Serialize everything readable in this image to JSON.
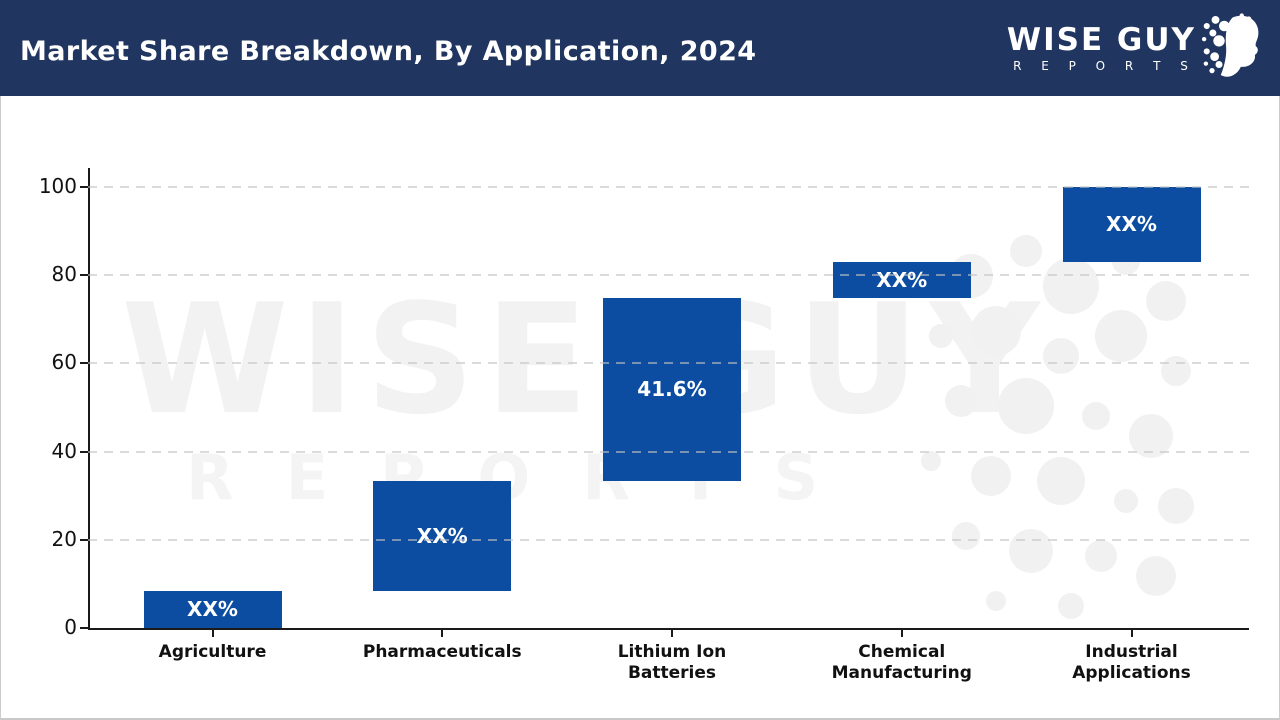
{
  "header": {
    "title": "Market Share Breakdown, By Application, 2024",
    "logo": {
      "line1": "WISE GUY",
      "line2": "R E P O R T S"
    }
  },
  "watermark": {
    "line1": "WISE GUY",
    "line2": "REPORTS"
  },
  "colors": {
    "header_bg": "#20355f",
    "bar_fill": "#0c4da2",
    "bar_label_text": "#ffffff",
    "axis": "#1a1a1a",
    "gridline": "#dcdcdc",
    "watermark": "#f2f2f2",
    "title_text": "#ffffff"
  },
  "chart_data": {
    "type": "bar",
    "subtype": "waterfall",
    "title": "Market Share Breakdown, By Application, 2024",
    "xlabel": "",
    "ylabel": "",
    "ylim": [
      0,
      104
    ],
    "yticks": [
      0,
      20,
      40,
      60,
      80,
      100
    ],
    "grid": "horizontal-dashed, drawn over bars",
    "legend": "none",
    "bar_color": "#0c4da2",
    "categories": [
      "Agriculture",
      "Pharmaceuticals",
      "Lithium Ion\nBatteries",
      "Chemical\nManufacturing",
      "Industrial\nApplications"
    ],
    "segments": [
      {
        "category": "Agriculture",
        "start": 0,
        "end": 8.4,
        "value_label": "XX%"
      },
      {
        "category": "Pharmaceuticals",
        "start": 8.4,
        "end": 33.3,
        "value_label": "XX%"
      },
      {
        "category": "Lithium Ion Batteries",
        "start": 33.3,
        "end": 74.9,
        "value_label": "41.6%"
      },
      {
        "category": "Chemical Manufacturing",
        "start": 74.9,
        "end": 83.0,
        "value_label": "XX%"
      },
      {
        "category": "Industrial Applications",
        "start": 83.0,
        "end": 100,
        "value_label": "XX%"
      }
    ]
  }
}
